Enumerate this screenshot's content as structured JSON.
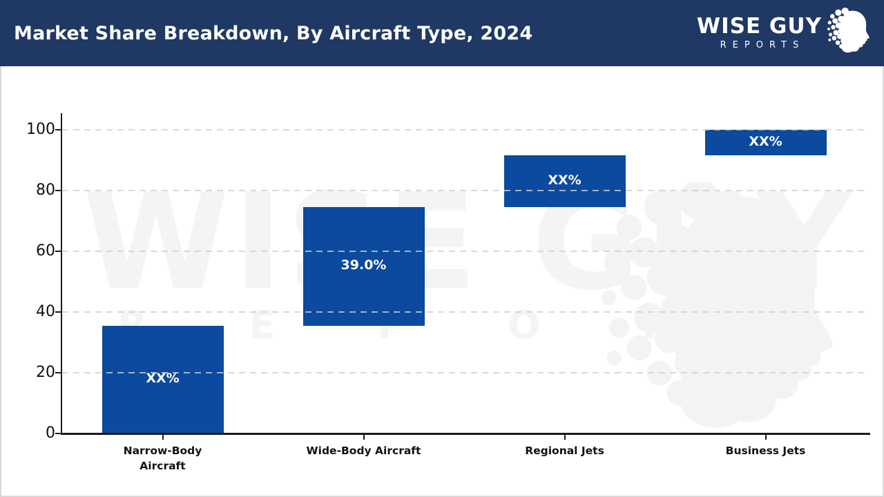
{
  "header": {
    "title": "Market Share Breakdown, By Aircraft Type, 2024",
    "bg_color": "#1f3864",
    "logo": {
      "line1": "WISE GUY",
      "line2": "REPORTS",
      "icon": "dotted-face-profile"
    }
  },
  "watermark": {
    "line1": "WISE GUY",
    "line2": "R E P O R T S",
    "icon": "dotted-face-profile",
    "color": "#f3f4f6"
  },
  "chart_data": {
    "type": "bar",
    "subtype": "floating-waterfall",
    "title": "Market Share Breakdown, By Aircraft Type, 2024",
    "categories": [
      "Narrow-Body\nAircraft",
      "Wide-Body Aircraft",
      "Regional Jets",
      "Business Jets"
    ],
    "series": [
      {
        "name": "Market Share (%)",
        "segments": [
          {
            "category": "Narrow-Body Aircraft",
            "start": 0,
            "end": 35.5,
            "label": "XX%"
          },
          {
            "category": "Wide-Body Aircraft",
            "start": 35.5,
            "end": 74.5,
            "label": "39.0%",
            "value": 39.0
          },
          {
            "category": "Regional Jets",
            "start": 74.5,
            "end": 91.5,
            "label": "XX%"
          },
          {
            "category": "Business Jets",
            "start": 91.5,
            "end": 100,
            "label": "XX%"
          }
        ]
      }
    ],
    "xlabel": "",
    "ylabel": "",
    "ylim": [
      0,
      100
    ],
    "yticks": [
      0,
      20,
      40,
      60,
      80,
      100
    ],
    "grid": "horizontal-dashed",
    "grid_color": "#cfcfcf",
    "bar_color": "#0b4a9e",
    "bar_label_color": "#ffffff",
    "axis_color": "#1a1a1a",
    "legend": "none"
  }
}
